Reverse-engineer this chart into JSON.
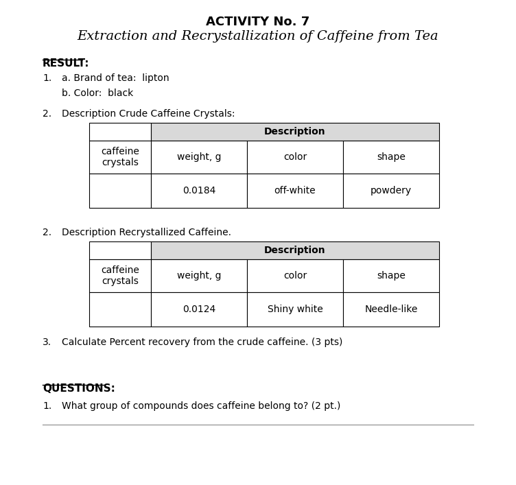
{
  "title_line1": "ACTIVITY No. 7",
  "title_line2": "Extraction and Recrystallization of Caffeine from Tea",
  "result_label": "RESULT:",
  "item1_a": "a. Brand of tea:  lipton",
  "item1_b": "b. Color:  black",
  "item2_label": "Description Crude Caffeine Crystals:",
  "table1_header": "Description",
  "table1_col2_row1": "weight, g",
  "table1_col3_row1": "color",
  "table1_col4_row1": "shape",
  "table1_col2_row2": "0.0184",
  "table1_col3_row2": "off-white",
  "table1_col4_row2": "powdery",
  "item2b_label": "Description Recrystallized Caffeine.",
  "table2_header": "Description",
  "table2_col2_row1": "weight, g",
  "table2_col3_row1": "color",
  "table2_col4_row1": "shape",
  "table2_col2_row2": "0.0124",
  "table2_col3_row2": "Shiny white",
  "table2_col4_row2": "Needle-like",
  "item3_label": "Calculate Percent recovery from the crude caffeine. (3 pts)",
  "questions_label": "QUESTIONS:",
  "q1_label": "What group of compounds does caffeine belong to? (2 pt.)",
  "bg_color": "#ffffff",
  "table_header_bg": "#d9d9d9",
  "table_border_color": "#000000",
  "text_color": "#000000",
  "font_size_title1": 13,
  "font_size_title2": 14,
  "font_size_body": 10,
  "font_size_table": 10
}
